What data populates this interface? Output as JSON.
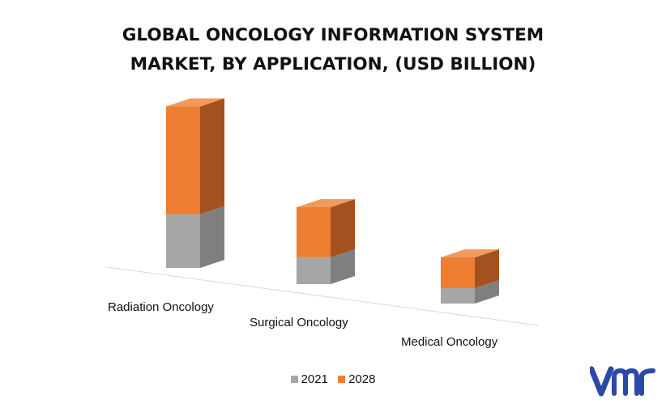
{
  "title_line1": "GLOBAL ONCOLOGY INFORMATION SYSTEM",
  "title_line2": "MARKET, BY APPLICATION, (USD BILLION)",
  "colors": {
    "2021": "#a6a6a6",
    "2028": "#ed7d31"
  },
  "logo_icon": "vmr-logo-icon",
  "chart_data": {
    "type": "bar",
    "stacked": true,
    "style": "3d",
    "title": "GLOBAL ONCOLOGY INFORMATION SYSTEM MARKET, BY APPLICATION, (USD BILLION)",
    "categories": [
      "Radiation Oncology",
      "Surgical Oncology",
      "Medical Oncology"
    ],
    "series": [
      {
        "name": "2021",
        "values": [
          0.7,
          0.35,
          0.2
        ]
      },
      {
        "name": "2028",
        "values": [
          1.4,
          0.65,
          0.4
        ]
      }
    ],
    "legend_position": "bottom",
    "grid": false,
    "axis_labels_visible": false
  }
}
